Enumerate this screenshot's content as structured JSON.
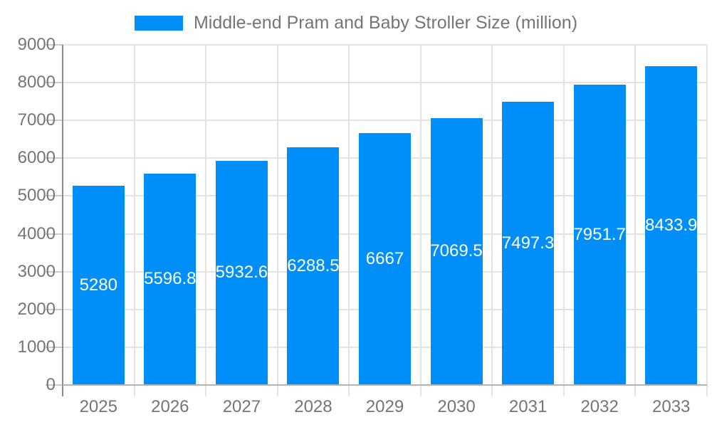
{
  "legend": {
    "label": "Middle-end Pram and Baby Stroller Size (million)"
  },
  "chart_data": {
    "type": "bar",
    "title": "Middle-end Pram and Baby Stroller Size (million)",
    "categories": [
      "2025",
      "2026",
      "2027",
      "2028",
      "2029",
      "2030",
      "2031",
      "2032",
      "2033"
    ],
    "values": [
      5280,
      5596.8,
      5932.6,
      6288.5,
      6667,
      7069.5,
      7497.3,
      7951.7,
      8433.9
    ],
    "value_labels": [
      "5280",
      "5596.8",
      "5932.6",
      "6288.5",
      "6667",
      "7069.5",
      "7497.3",
      "7951.7",
      "8433.9"
    ],
    "xlabel": "",
    "ylabel": "",
    "ylim": [
      0,
      9000
    ],
    "yticks": [
      "0",
      "1000",
      "2000",
      "3000",
      "4000",
      "5000",
      "6000",
      "7000",
      "8000",
      "9000"
    ],
    "grid": true,
    "legend_position": "top",
    "colors": {
      "bar": "#008ff8",
      "value_label": "#ffffff",
      "axis_text": "#757575",
      "gridline": "#e3e3e3",
      "baseline": "#b3b3b3",
      "axis_line": "#8a8a8a",
      "tick_dash": "#cccccc",
      "background": "#ffffff"
    }
  }
}
